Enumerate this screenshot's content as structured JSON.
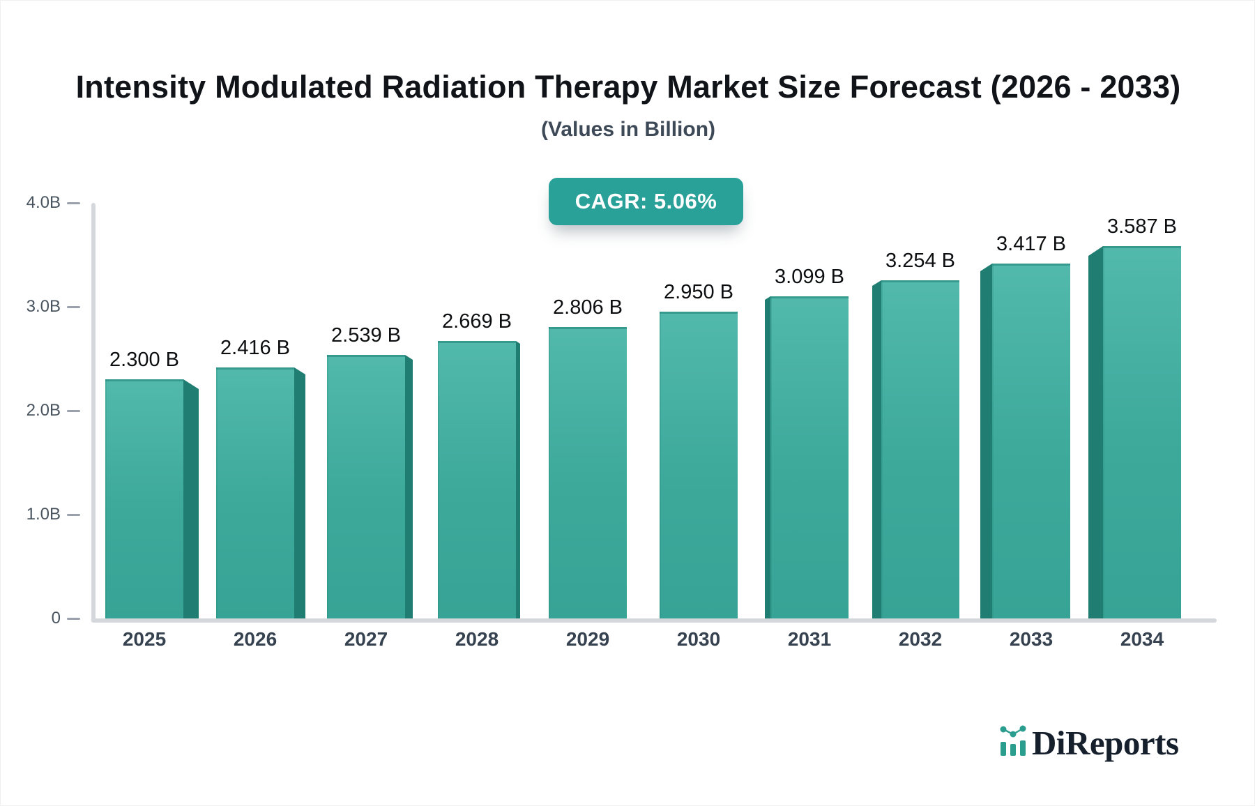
{
  "header": {
    "title": "Intensity Modulated Radiation Therapy Market Size Forecast (2026 - 2033)",
    "subtitle": "(Values in Billion)"
  },
  "badge": {
    "label": "CAGR: 5.06%"
  },
  "chart_data": {
    "type": "bar",
    "title": "Intensity Modulated Radiation Therapy Market Size Forecast (2026 - 2033)",
    "subtitle": "(Values in Billion)",
    "cagr": "5.06%",
    "categories": [
      "2025",
      "2026",
      "2027",
      "2028",
      "2029",
      "2030",
      "2031",
      "2032",
      "2033",
      "2034"
    ],
    "values": [
      2.3,
      2.416,
      2.539,
      2.669,
      2.806,
      2.95,
      3.099,
      3.254,
      3.417,
      3.587
    ],
    "value_labels": [
      "2.300 B",
      "2.416 B",
      "2.539 B",
      "2.669 B",
      "2.806 B",
      "2.950 B",
      "3.099 B",
      "3.254 B",
      "3.417 B",
      "3.587 B"
    ],
    "xlabel": "",
    "ylabel": "",
    "ylim": [
      0,
      4.0
    ],
    "yticks": [
      {
        "value": 4.0,
        "label": "4.0B"
      },
      {
        "value": 3.0,
        "label": "3.0B"
      },
      {
        "value": 2.0,
        "label": "2.0B"
      },
      {
        "value": 1.0,
        "label": "1.0B"
      },
      {
        "value": 0.0,
        "label": "0"
      }
    ],
    "grid": false,
    "legend_position": "none",
    "bar_style": "3d-beveled",
    "colors": {
      "bar_front_top": "#52b9ac",
      "bar_front_bottom": "#37a396",
      "bar_side": "#1f7d72",
      "badge_background": "#2aa198",
      "badge_text": "#ffffff",
      "axis": "#d4d7dc",
      "tick_dash": "#9aa1ac",
      "y_label": "#49545f",
      "x_label": "#364250",
      "title": "#101419",
      "subtitle": "#3e4957"
    }
  },
  "footer": {
    "logo_text": "DiReports",
    "logo_icon": "mini-bar-line-chart-icon",
    "logo_color": "#16202d",
    "logo_icon_color": "#2a9d8f"
  }
}
